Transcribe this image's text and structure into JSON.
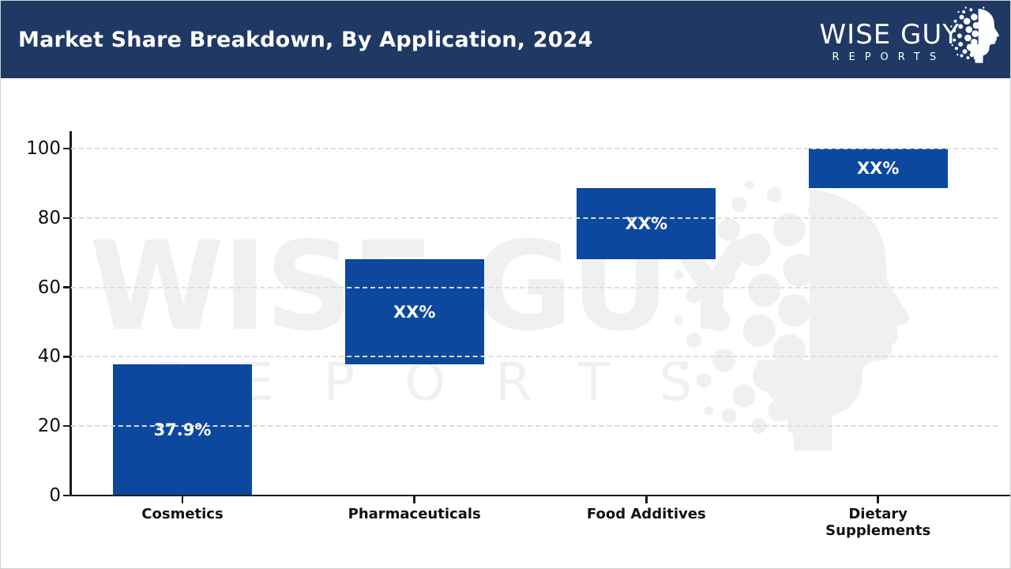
{
  "header": {
    "title": "Market Share Breakdown, By Application, 2024",
    "logo": {
      "line1": "WISE GUY",
      "line2": "REPORTS"
    }
  },
  "watermark": {
    "line1": "WISE GUY",
    "line2": "REPORTS"
  },
  "chart_data": {
    "type": "bar",
    "subtype": "waterfall",
    "title": "Market Share Breakdown, By Application, 2024",
    "categories": [
      "Cosmetics",
      "Pharmaceuticals",
      "Food Additives",
      "Dietary Supplements"
    ],
    "category_lines": [
      [
        "Cosmetics"
      ],
      [
        "Pharmaceuticals"
      ],
      [
        "Food Additives"
      ],
      [
        "Dietary",
        "Supplements"
      ]
    ],
    "series": [
      {
        "name": "Market Share",
        "segments": [
          {
            "category": "Cosmetics",
            "start": 0,
            "end": 37.9,
            "label": "37.9%"
          },
          {
            "category": "Pharmaceuticals",
            "start": 37.9,
            "end": 68.0,
            "label": "XX%"
          },
          {
            "category": "Food Additives",
            "start": 68.0,
            "end": 88.6,
            "label": "XX%"
          },
          {
            "category": "Dietary Supplements",
            "start": 88.6,
            "end": 100.0,
            "label": "XX%"
          }
        ]
      }
    ],
    "y_ticks": [
      0,
      20,
      40,
      60,
      80,
      100
    ],
    "ylim": [
      0,
      105
    ],
    "xlabel": "",
    "ylabel": "",
    "grid": "horizontal-dashed",
    "legend": "none",
    "bar_color": "#0c489e",
    "label_color": "#ffffff"
  },
  "colors": {
    "header_bg": "#1f3864",
    "bar_fill": "#0c489e",
    "axis": "#1c1c1c",
    "gridline": "#dcdcdc",
    "watermark": "#f0f0f0",
    "page_border": "#cfcfcf"
  }
}
